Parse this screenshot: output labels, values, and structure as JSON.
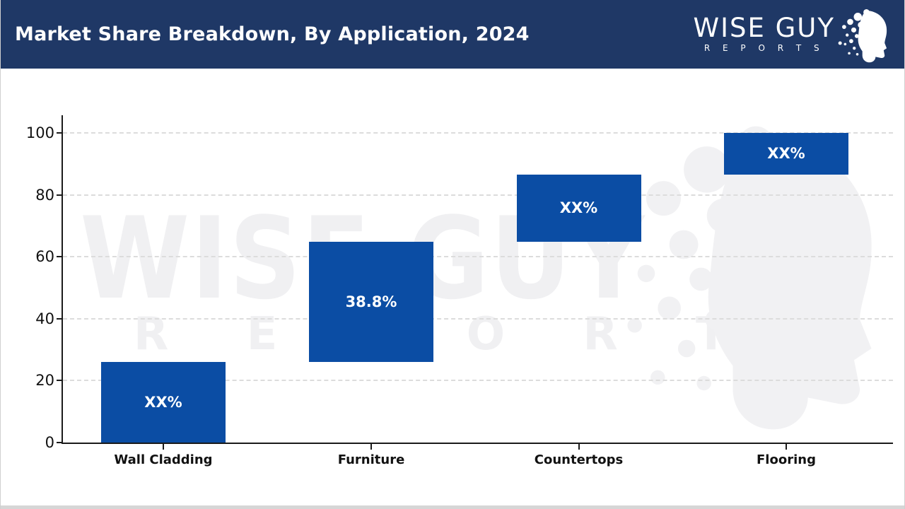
{
  "header": {
    "title": "Market Share Breakdown, By Application, 2024",
    "bg_color": "#1f3866",
    "logo": {
      "line1": "WISE GUY",
      "line2": "R E P O R T S"
    }
  },
  "watermark": {
    "line1": "WISE GUY",
    "line2": "R E P O R T S"
  },
  "chart_data": {
    "type": "bar",
    "subtype": "waterfall",
    "title": "Market Share Breakdown, By Application, 2024",
    "xlabel": "",
    "ylabel": "",
    "ylim": [
      0,
      100
    ],
    "yticks": [
      0,
      20,
      40,
      60,
      80,
      100
    ],
    "grid": "horizontal-dashed",
    "legend": "none",
    "bar_color": "#0b4da4",
    "bar_label_color": "#ffffff",
    "categories": [
      "Wall Cladding",
      "Furniture",
      "Countertops",
      "Flooring"
    ],
    "segments": [
      {
        "category": "Wall Cladding",
        "start": 0,
        "end": 26,
        "label": "XX%"
      },
      {
        "category": "Furniture",
        "start": 26,
        "end": 64.8,
        "label": "38.8%"
      },
      {
        "category": "Countertops",
        "start": 64.8,
        "end": 86.6,
        "label": "XX%"
      },
      {
        "category": "Flooring",
        "start": 86.6,
        "end": 100,
        "label": "XX%"
      }
    ]
  }
}
